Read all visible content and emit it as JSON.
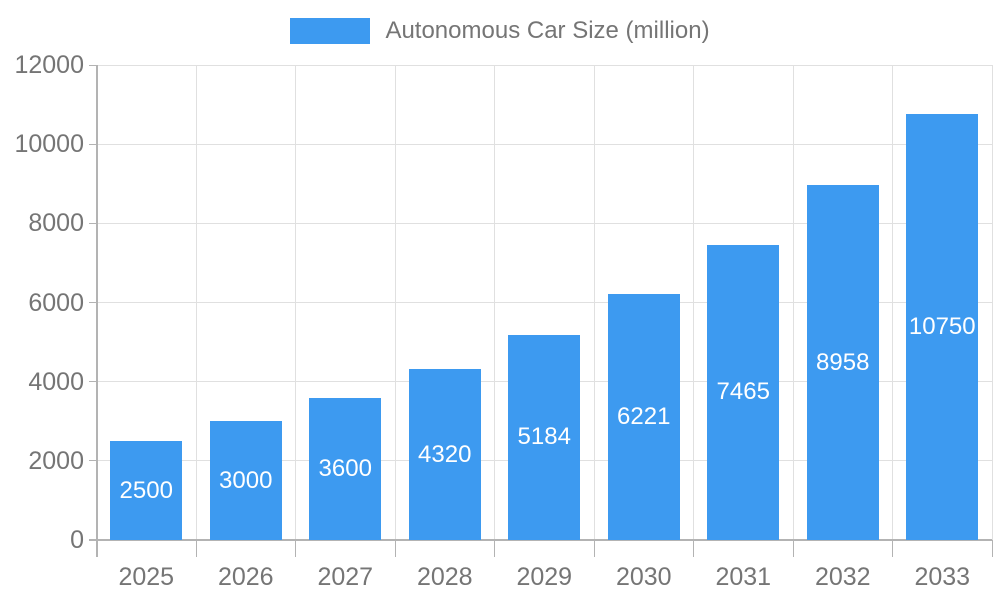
{
  "chart_data": {
    "type": "bar",
    "title": "Autonomous Car Size (million)",
    "legend": [
      "Autonomous Car Size (million)"
    ],
    "legend_position": "top-center",
    "categories": [
      "2025",
      "2026",
      "2027",
      "2028",
      "2029",
      "2030",
      "2031",
      "2032",
      "2033"
    ],
    "series": [
      {
        "name": "Autonomous Car Size (million)",
        "values": [
          2500,
          3000,
          3600,
          4320,
          5184,
          6221,
          7465,
          8958,
          10750
        ]
      }
    ],
    "bar_value_labels": [
      "2500",
      "3000",
      "3600",
      "4320",
      "5184",
      "6221",
      "7465",
      "8958",
      "10750"
    ],
    "xlabel": "",
    "ylabel": "",
    "ylim": [
      0,
      12000
    ],
    "ytick_step": 2000,
    "ytick_labels": [
      "0",
      "2000",
      "4000",
      "6000",
      "8000",
      "10000",
      "12000"
    ],
    "grid": true,
    "colors": {
      "bar": "#3d9af0",
      "grid": "#e0e0e0",
      "axis": "#b3b3b3",
      "text": "#757575",
      "bar_label": "#ffffff",
      "background": "#ffffff"
    }
  }
}
